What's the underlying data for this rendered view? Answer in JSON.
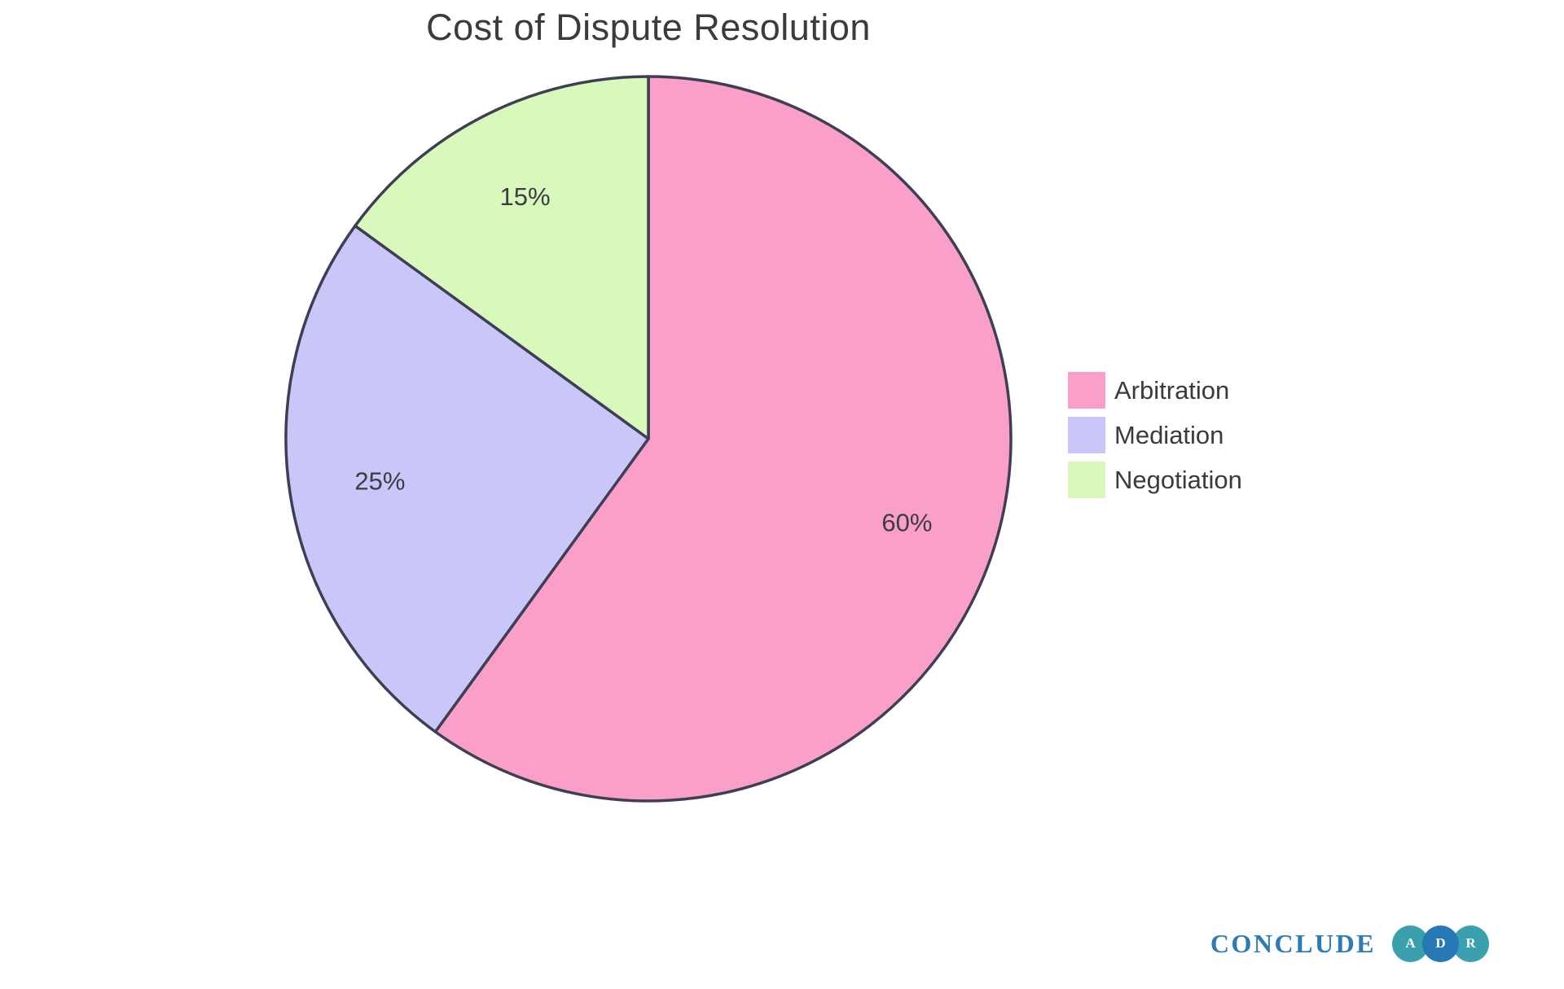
{
  "chart_data": {
    "type": "pie",
    "title": "Cost of Dispute Resolution",
    "labels": [
      "Arbitration",
      "Mediation",
      "Negotiation"
    ],
    "values": [
      60,
      25,
      15
    ],
    "value_labels": [
      "60%",
      "25%",
      "15%"
    ],
    "colors": [
      "#FA9FC8",
      "#C9C7F8",
      "#D9F8BB"
    ],
    "outline_color": "#3E3E55",
    "label_color": "#3C3C46",
    "title_color": "#3B3B3B",
    "legend_text_color": "#3B3B3B",
    "start_angle_deg": 90,
    "direction": "clockwise",
    "legend_position": "right",
    "label_radius_fraction": 0.75
  },
  "logo": {
    "brand_text": "CONCLUDE",
    "brand_color": "#2B7CB3",
    "letter_color": "#FFFFFF",
    "circles": [
      {
        "letter": "A",
        "color": "#3BA0AE"
      },
      {
        "letter": "D",
        "color": "#2679B4"
      },
      {
        "letter": "R",
        "color": "#3BA0AE"
      }
    ]
  }
}
